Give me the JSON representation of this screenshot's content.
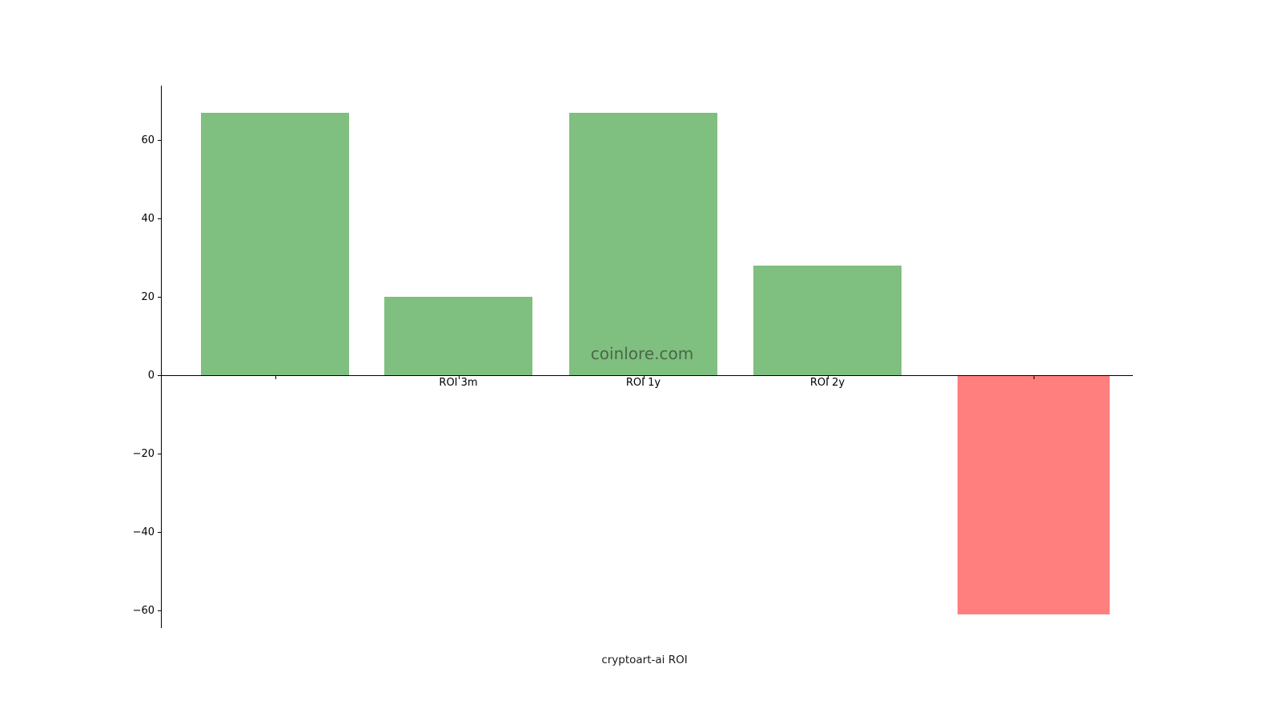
{
  "watermark": "coinlore.com",
  "chart_data": {
    "type": "bar",
    "title": "cryptoart-ai ROI",
    "xlabel": "",
    "ylabel": "",
    "categories": [
      "",
      "ROI 3m",
      "ROI 1y",
      "ROI 2y",
      ""
    ],
    "values": [
      67,
      20,
      67,
      28,
      -61
    ],
    "bar_colors": [
      "#7FBF7F",
      "#7FBF7F",
      "#7FBF7F",
      "#7FBF7F",
      "#FF7F7F"
    ],
    "positive_color": "#7FBF7F",
    "negative_color": "#FF7F7F",
    "y_ticks": [
      {
        "value": 60,
        "label": "60"
      },
      {
        "value": 40,
        "label": "40"
      },
      {
        "value": 20,
        "label": "20"
      },
      {
        "value": 0,
        "label": "0"
      },
      {
        "value": -20,
        "label": "−20"
      },
      {
        "value": -40,
        "label": "−40"
      },
      {
        "value": -60,
        "label": "−60"
      }
    ],
    "ylim": [
      -64,
      74
    ],
    "grid": false,
    "legend": false
  }
}
